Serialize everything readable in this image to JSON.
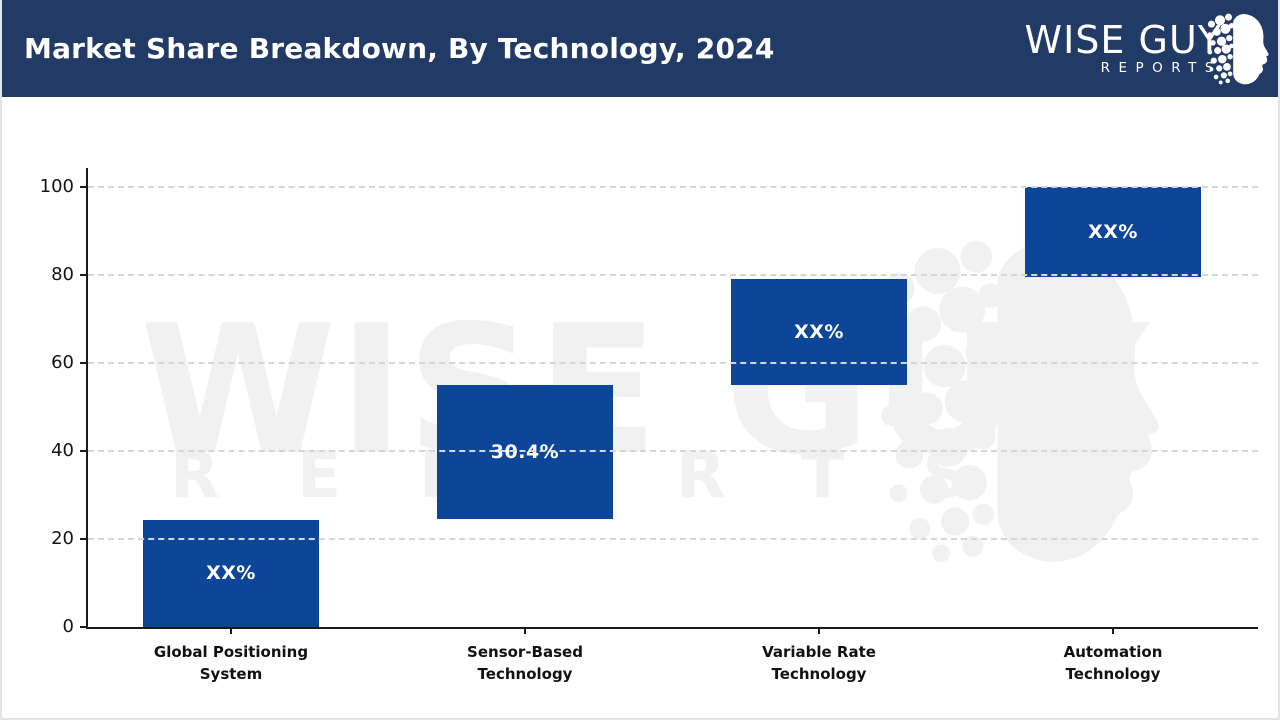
{
  "header": {
    "title": "Market Share Breakdown, By Technology, 2024",
    "logo": {
      "line1": "WISE GUY",
      "line2": "REPORTS"
    }
  },
  "watermark": {
    "line1": "WISE GUY",
    "line2": "REPORTS"
  },
  "chart_data": {
    "type": "bar",
    "subtype": "floating-waterfall",
    "title": "Market Share Breakdown, By Technology, 2024",
    "xlabel": "",
    "ylabel": "",
    "ylim": [
      0,
      100
    ],
    "yticks": [
      0,
      20,
      40,
      60,
      80,
      100
    ],
    "grid": "horizontal-dashed",
    "legend": "none",
    "bar_color": "#0d4699",
    "categories": [
      [
        "Global Positioning",
        "System"
      ],
      [
        "Sensor-Based",
        "Technology"
      ],
      [
        "Variable Rate",
        "Technology"
      ],
      [
        "Automation",
        "Technology"
      ]
    ],
    "segments": [
      {
        "category": "Global Positioning System",
        "start": 0,
        "end": 24.4,
        "label": "XX%"
      },
      {
        "category": "Sensor-Based Technology",
        "start": 24.6,
        "end": 55.0,
        "label": "30.4%"
      },
      {
        "category": "Variable Rate Technology",
        "start": 55.0,
        "end": 79.2,
        "label": "XX%"
      },
      {
        "category": "Automation Technology",
        "start": 79.5,
        "end": 100,
        "label": "XX%"
      }
    ]
  },
  "colors": {
    "header_bg": "#213a66",
    "bar": "#0d4699",
    "axis": "#1a1a1a",
    "gridline": "#d6d6d6",
    "watermark": "#f1f1f1",
    "text": "#111111"
  }
}
